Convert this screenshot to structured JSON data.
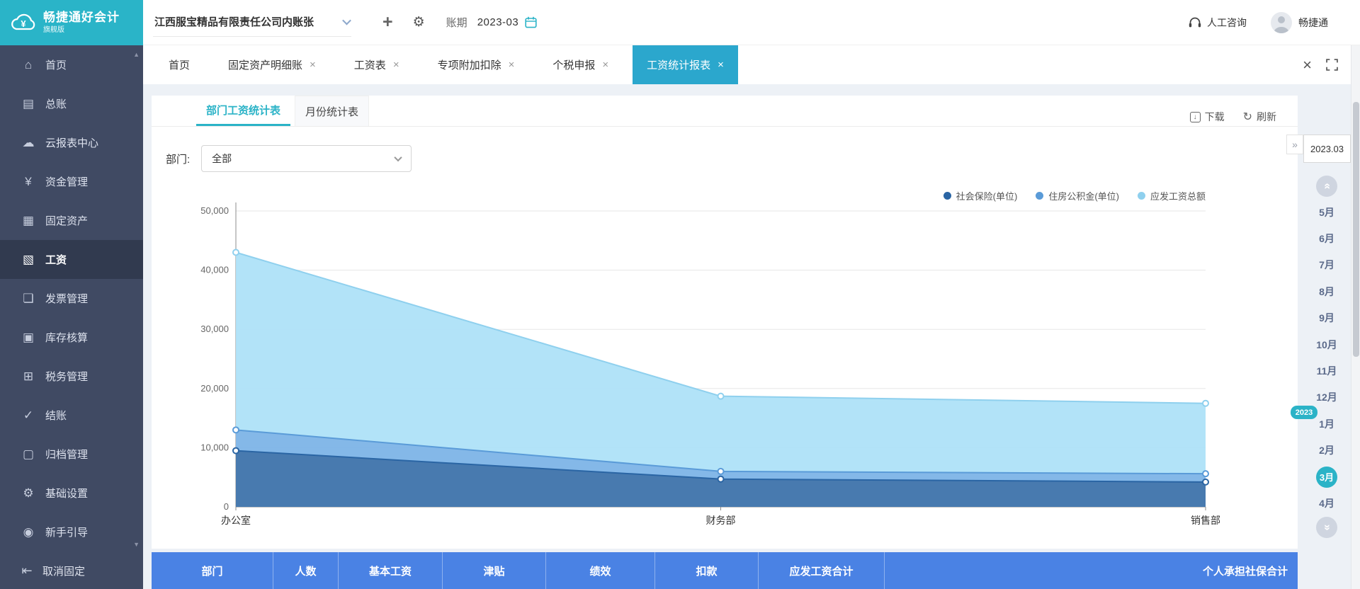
{
  "colors": {
    "accent": "#2bb3c7",
    "tab-active": "#2ba7cd",
    "brand": "#2ab4c8",
    "table-head": "#4a82e4",
    "sidebar-bg": "#404a63",
    "sidebar-active-bg": "#313a4f"
  },
  "brand": {
    "name": "畅捷通好会计",
    "edition": "旗舰版"
  },
  "topbar": {
    "company": "江西服宝精品有限责任公司内账张",
    "period_label": "账期",
    "period_value": "2023-03",
    "help_label": "人工咨询",
    "user_name": "畅捷通"
  },
  "sidebar": {
    "active_index": 5,
    "items": [
      {
        "id": "home",
        "label": "首页",
        "icon": "home"
      },
      {
        "id": "general-ledger",
        "label": "总账",
        "icon": "ledger"
      },
      {
        "id": "cloud-reports",
        "label": "云报表中心",
        "icon": "cloud-report"
      },
      {
        "id": "funds",
        "label": "资金管理",
        "icon": "funds"
      },
      {
        "id": "fixed-assets",
        "label": "固定资产",
        "icon": "fixed-assets"
      },
      {
        "id": "salary",
        "label": "工资",
        "icon": "salary"
      },
      {
        "id": "invoice",
        "label": "发票管理",
        "icon": "invoice"
      },
      {
        "id": "inventory",
        "label": "库存核算",
        "icon": "inventory"
      },
      {
        "id": "tax",
        "label": "税务管理",
        "icon": "tax"
      },
      {
        "id": "closing",
        "label": "结账",
        "icon": "closing"
      },
      {
        "id": "archive",
        "label": "归档管理",
        "icon": "archive"
      },
      {
        "id": "settings",
        "label": "基础设置",
        "icon": "settings"
      },
      {
        "id": "guide",
        "label": "新手引导",
        "icon": "guide"
      }
    ],
    "unpin_label": "取消固定"
  },
  "tabs": {
    "active_index": 5,
    "items": [
      {
        "id": "home",
        "label": "首页",
        "closable": false
      },
      {
        "id": "fixed-asset-ledger",
        "label": "固定资产明细账",
        "closable": true
      },
      {
        "id": "salary-table",
        "label": "工资表",
        "closable": true
      },
      {
        "id": "special-deduction",
        "label": "专项附加扣除",
        "closable": true
      },
      {
        "id": "personal-tax",
        "label": "个税申报",
        "closable": true
      },
      {
        "id": "salary-report",
        "label": "工资统计报表",
        "closable": true
      }
    ]
  },
  "content": {
    "subtabs": [
      {
        "id": "department-summary",
        "label": "部门工资统计表"
      },
      {
        "id": "month-summary",
        "label": "月份统计表"
      }
    ],
    "active_subtab": 0,
    "download_label": "下载",
    "refresh_label": "刷新",
    "filter_label": "部门:",
    "filter_value": "全部"
  },
  "chart_data": {
    "type": "area",
    "categories": [
      "办公室",
      "财务部",
      "销售部"
    ],
    "series": [
      {
        "name": "社会保险(单位)",
        "color": "#2a65a4",
        "fill": "#3d6fa5",
        "fill_opacity": 0.85,
        "values": [
          9500,
          4700,
          4200
        ]
      },
      {
        "name": "住房公积金(单位)",
        "color": "#5a9bd8",
        "fill": "#7eb2e6",
        "fill_opacity": 0.9,
        "values": [
          13000,
          6000,
          5600
        ]
      },
      {
        "name": "应发工资总额",
        "color": "#8fd0ee",
        "fill": "#aee2f8",
        "fill_opacity": 0.95,
        "values": [
          43000,
          18700,
          17500
        ]
      }
    ],
    "ylim": [
      0,
      50000
    ],
    "ytick": 10000,
    "grid": true,
    "legend_position": "top-right"
  },
  "table": {
    "headers": [
      "部门",
      "人数",
      "基本工资",
      "津贴",
      "绩效",
      "扣款",
      "应发工资合计",
      "个人承担社保合计"
    ]
  },
  "month_panel": {
    "current_period": "2023.03",
    "year_badge": "2023",
    "months": [
      "5月",
      "6月",
      "7月",
      "8月",
      "9月",
      "10月",
      "11月",
      "12月",
      "1月",
      "2月",
      "3月",
      "4月"
    ],
    "active_month": "3月"
  }
}
